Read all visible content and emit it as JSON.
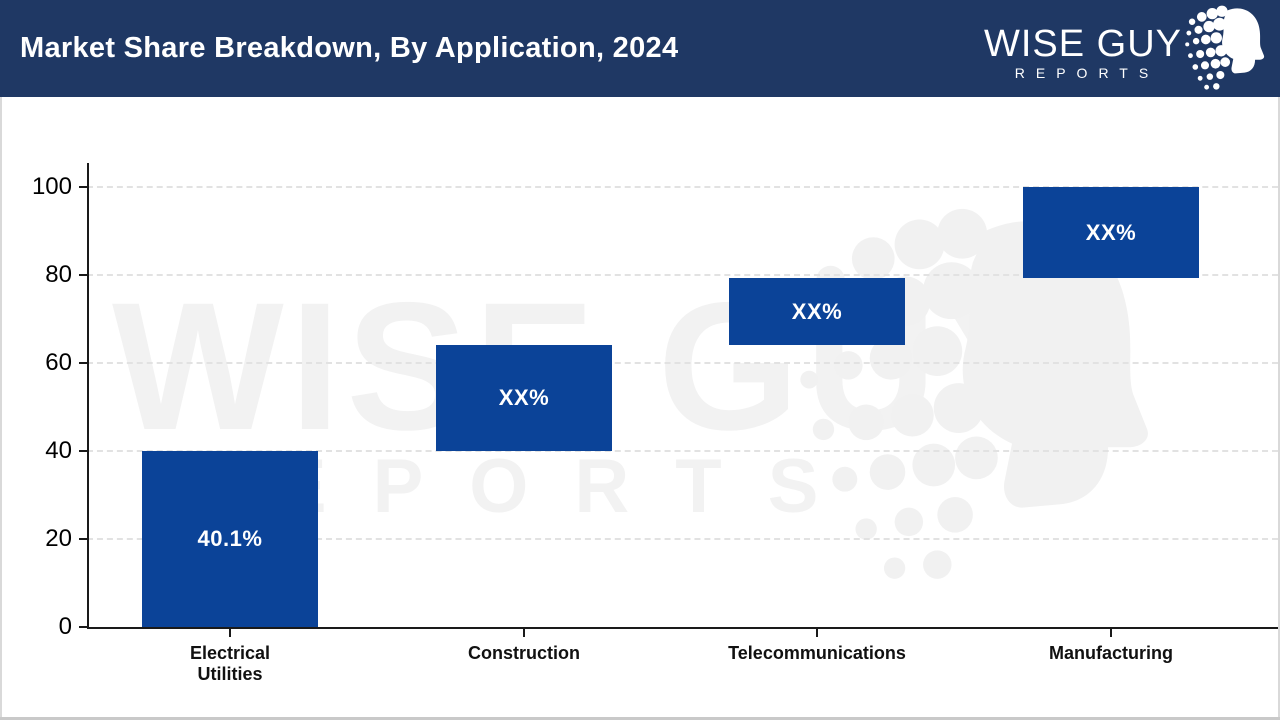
{
  "header": {
    "title": "Market Share Breakdown, By Application, 2024",
    "logo": {
      "wordmark": "WISE GUY",
      "subtext": "REPORTS"
    }
  },
  "watermark": {
    "wordmark": "WISE GUY",
    "subtext": "REPORTS"
  },
  "chart_data": {
    "type": "bar",
    "subtype": "waterfall",
    "title": "Market Share Breakdown, By Application, 2024",
    "categories": [
      "Electrical\nUtilities",
      "Construction",
      "Telecommunications",
      "Manufacturing"
    ],
    "segments": [
      {
        "category": "Electrical\nUtilities",
        "start": 0,
        "end": 40.1,
        "label": "40.1%"
      },
      {
        "category": "Construction",
        "start": 40.1,
        "end": 64,
        "label": "XX%"
      },
      {
        "category": "Telecommunications",
        "start": 64,
        "end": 79.3,
        "label": "XX%"
      },
      {
        "category": "Manufacturing",
        "start": 79.3,
        "end": 100,
        "label": "XX%"
      }
    ],
    "xlabel": "",
    "ylabel": "",
    "ylim": [
      0,
      100
    ],
    "yticks": [
      0,
      20,
      40,
      60,
      80,
      100
    ],
    "grid": "horizontal-dashed",
    "legend": "none",
    "colors": {
      "bar": "#0b4398",
      "bar_label": "#ffffff",
      "axis": "#1a1a1a",
      "gridline": "#e2e2e2",
      "tick_label": "#000000"
    }
  },
  "theme": {
    "header_background": "#1f3864",
    "header_text": "#ffffff",
    "page_background": "#ffffff",
    "watermark_color": "#f2f2f2"
  }
}
